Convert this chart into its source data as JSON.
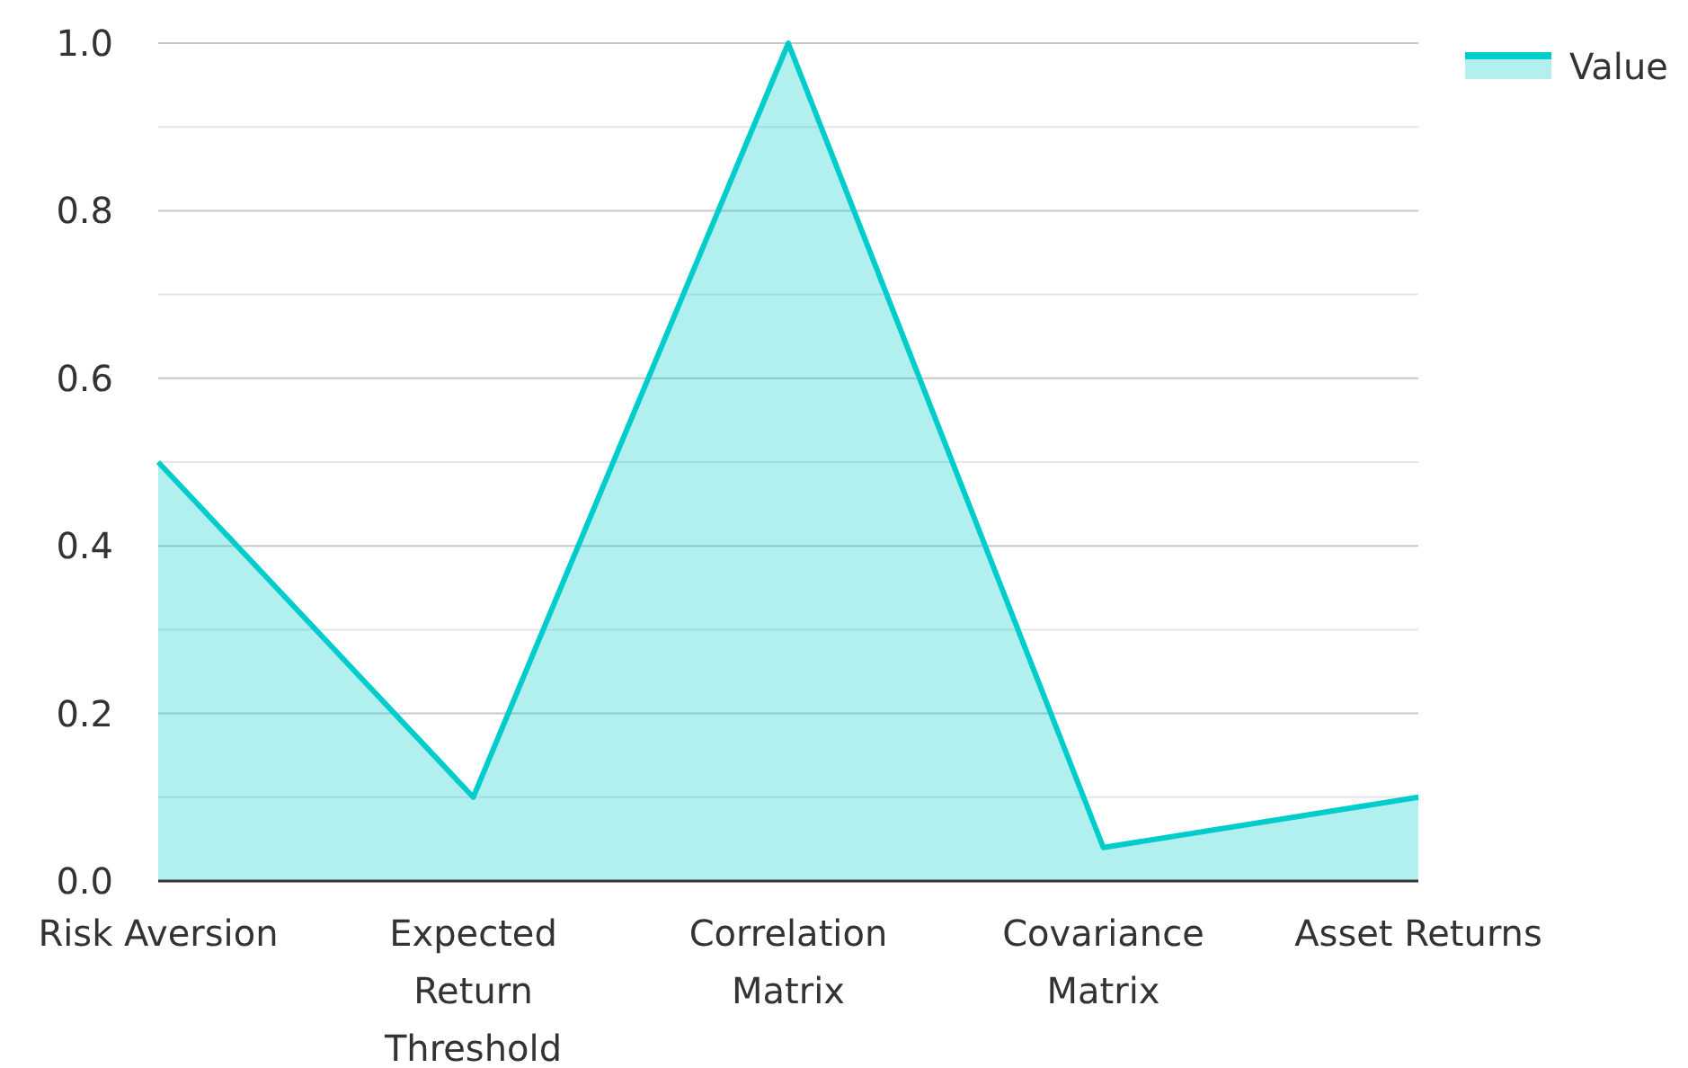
{
  "chart_data": {
    "type": "area",
    "categories": [
      "Risk Aversion",
      "Expected Return Threshold",
      "Correlation Matrix",
      "Covariance Matrix",
      "Asset Returns"
    ],
    "series": [
      {
        "name": "Value",
        "color": "#00cccc",
        "values": [
          0.5,
          0.1,
          1.0,
          0.04,
          0.1
        ]
      }
    ],
    "ylim": [
      0,
      1
    ],
    "yticks": [
      {
        "value": 0,
        "label": "0.0"
      },
      {
        "value": 0.1,
        "label": null
      },
      {
        "value": 0.2,
        "label": "0.2"
      },
      {
        "value": 0.3,
        "label": null
      },
      {
        "value": 0.4,
        "label": "0.4"
      },
      {
        "value": 0.5,
        "label": null
      },
      {
        "value": 0.6,
        "label": "0.6"
      },
      {
        "value": 0.7,
        "label": null
      },
      {
        "value": 0.8,
        "label": "0.8"
      },
      {
        "value": 0.9,
        "label": null
      },
      {
        "value": 1,
        "label": "1.0"
      }
    ],
    "grid": "y",
    "legend": "top right"
  }
}
